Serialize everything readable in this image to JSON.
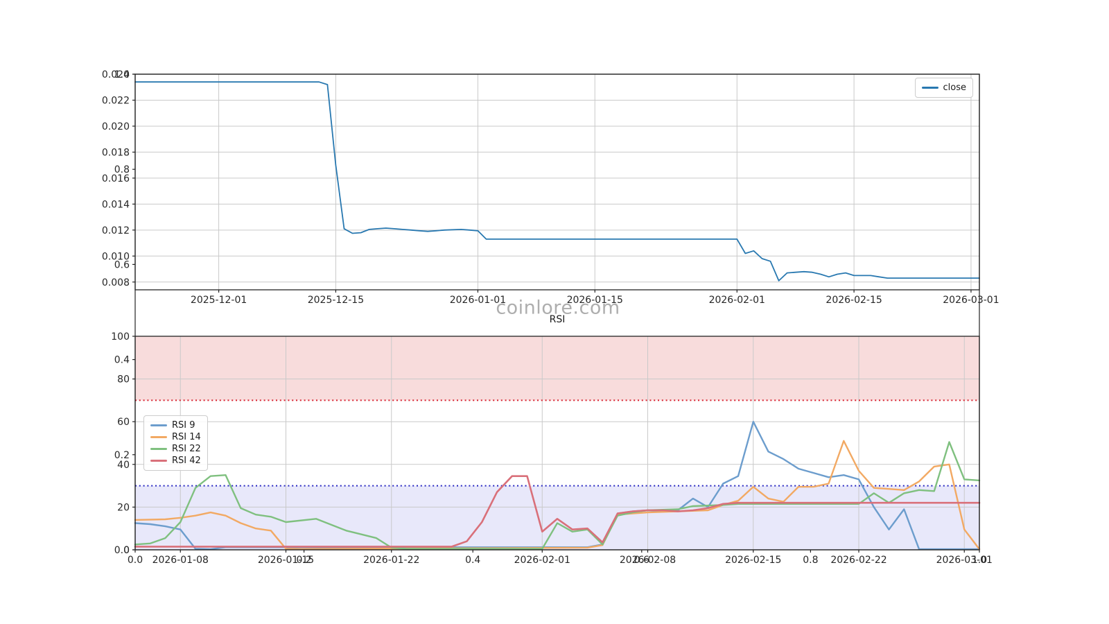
{
  "watermark": "coinlore.com",
  "figure_axis": {
    "x_ticks": [
      "0.0",
      "0.2",
      "0.4",
      "0.6",
      "0.8",
      "1.0"
    ],
    "y_ticks": [
      "0.0",
      "0.2",
      "0.4",
      "0.6",
      "0.8",
      "1.0"
    ]
  },
  "chart_data": [
    {
      "type": "line",
      "title": "",
      "xlabel": "",
      "ylabel": "",
      "x_domain": [
        "2025-11-21",
        "2026-03-02"
      ],
      "y_domain": [
        0.0074,
        0.024
      ],
      "grid": true,
      "x_ticks": [
        "2025-12-01",
        "2025-12-15",
        "2026-01-01",
        "2026-01-15",
        "2026-02-01",
        "2026-02-15",
        "2026-03-01"
      ],
      "y_ticks": [
        0.008,
        0.01,
        0.012,
        0.014,
        0.016,
        0.018,
        0.02,
        0.022,
        0.024
      ],
      "legend": {
        "position": "top-right",
        "entries": [
          {
            "label": "close",
            "color": "#2878b0"
          }
        ]
      },
      "series": [
        {
          "name": "close",
          "color": "#2878b0",
          "width": 1.8,
          "points": [
            [
              "2025-11-21",
              0.0234
            ],
            [
              "2025-12-13",
              0.0234
            ],
            [
              "2025-12-14",
              0.0232
            ],
            [
              "2025-12-15",
              0.017
            ],
            [
              "2025-12-16",
              0.0121
            ],
            [
              "2025-12-17",
              0.01175
            ],
            [
              "2025-12-18",
              0.0118
            ],
            [
              "2025-12-19",
              0.01205
            ],
            [
              "2025-12-20",
              0.0121
            ],
            [
              "2025-12-21",
              0.01215
            ],
            [
              "2025-12-22",
              0.0121
            ],
            [
              "2025-12-23",
              0.01205
            ],
            [
              "2025-12-24",
              0.012
            ],
            [
              "2025-12-25",
              0.01195
            ],
            [
              "2025-12-26",
              0.0119
            ],
            [
              "2025-12-27",
              0.01195
            ],
            [
              "2025-12-28",
              0.012
            ],
            [
              "2025-12-30",
              0.01205
            ],
            [
              "2025-12-31",
              0.012
            ],
            [
              "2026-01-01",
              0.01195
            ],
            [
              "2026-01-02",
              0.0113
            ],
            [
              "2026-01-15",
              0.0113
            ],
            [
              "2026-02-01",
              0.0113
            ],
            [
              "2026-02-02",
              0.0102
            ],
            [
              "2026-02-03",
              0.0104
            ],
            [
              "2026-02-04",
              0.0098
            ],
            [
              "2026-02-05",
              0.0096
            ],
            [
              "2026-02-06",
              0.0081
            ],
            [
              "2026-02-07",
              0.0087
            ],
            [
              "2026-02-08",
              0.00875
            ],
            [
              "2026-02-09",
              0.0088
            ],
            [
              "2026-02-10",
              0.00875
            ],
            [
              "2026-02-11",
              0.0086
            ],
            [
              "2026-02-12",
              0.0084
            ],
            [
              "2026-02-13",
              0.0086
            ],
            [
              "2026-02-14",
              0.0087
            ],
            [
              "2026-02-15",
              0.0085
            ],
            [
              "2026-02-16",
              0.0085
            ],
            [
              "2026-02-17",
              0.0085
            ],
            [
              "2026-02-18",
              0.0084
            ],
            [
              "2026-02-19",
              0.0083
            ],
            [
              "2026-03-02",
              0.0083
            ]
          ]
        }
      ]
    },
    {
      "type": "line",
      "title": "RSI",
      "xlabel": "",
      "ylabel": "",
      "x_domain": [
        "2026-01-05",
        "2026-03-02"
      ],
      "y_domain": [
        0,
        100
      ],
      "grid": true,
      "x_ticks": [
        "2026-01-08",
        "2026-01-15",
        "2026-01-22",
        "2026-02-01",
        "2026-02-08",
        "2026-02-15",
        "2026-02-22",
        "2026-03-01"
      ],
      "y_ticks": [
        0,
        20,
        40,
        60,
        80,
        100
      ],
      "overbought": {
        "value": 70,
        "line_color": "#d8202e",
        "band_color": "rgba(214,39,40,0.16)"
      },
      "oversold": {
        "value": 30,
        "line_color": "#2424c0",
        "band_color": "rgba(76,76,214,0.13)"
      },
      "legend": {
        "position": "left",
        "entries": [
          {
            "label": "RSI 9",
            "color": "#6c9dcd"
          },
          {
            "label": "RSI 14",
            "color": "#f2a963"
          },
          {
            "label": "RSI 22",
            "color": "#7fc07f"
          },
          {
            "label": "RSI 42",
            "color": "#d9707a"
          }
        ]
      },
      "series": [
        {
          "name": "RSI 9",
          "color": "#6c9dcd",
          "width": 2.4,
          "points": [
            [
              "2026-01-05",
              12.5
            ],
            [
              "2026-01-06",
              12
            ],
            [
              "2026-01-07",
              11
            ],
            [
              "2026-01-08",
              9.5
            ],
            [
              "2026-01-09",
              0.5
            ],
            [
              "2026-01-10",
              0.3
            ],
            [
              "2026-01-11",
              1.2
            ],
            [
              "2026-02-04",
              1.2
            ],
            [
              "2026-02-05",
              2.5
            ],
            [
              "2026-02-06",
              17
            ],
            [
              "2026-02-07",
              18
            ],
            [
              "2026-02-08",
              18.5
            ],
            [
              "2026-02-09",
              18
            ],
            [
              "2026-02-10",
              18.5
            ],
            [
              "2026-02-11",
              24
            ],
            [
              "2026-02-12",
              20
            ],
            [
              "2026-02-13",
              31
            ],
            [
              "2026-02-14",
              34.5
            ],
            [
              "2026-02-15",
              60
            ],
            [
              "2026-02-16",
              46
            ],
            [
              "2026-02-17",
              42.5
            ],
            [
              "2026-02-18",
              38
            ],
            [
              "2026-02-19",
              36
            ],
            [
              "2026-02-20",
              34
            ],
            [
              "2026-02-21",
              35
            ],
            [
              "2026-02-22",
              33
            ],
            [
              "2026-02-23",
              20
            ],
            [
              "2026-02-24",
              9.5
            ],
            [
              "2026-02-25",
              19
            ],
            [
              "2026-02-26",
              0.3
            ],
            [
              "2026-03-02",
              0.3
            ]
          ]
        },
        {
          "name": "RSI 14",
          "color": "#f2a963",
          "width": 2.4,
          "points": [
            [
              "2026-01-05",
              14
            ],
            [
              "2026-01-07",
              14.3
            ],
            [
              "2026-01-08",
              15
            ],
            [
              "2026-01-09",
              16
            ],
            [
              "2026-01-10",
              17.5
            ],
            [
              "2026-01-11",
              16
            ],
            [
              "2026-01-12",
              12.5
            ],
            [
              "2026-01-13",
              10
            ],
            [
              "2026-01-14",
              9
            ],
            [
              "2026-01-15",
              0.5
            ],
            [
              "2026-01-16",
              0.4
            ],
            [
              "2026-02-04",
              1.0
            ],
            [
              "2026-02-05",
              2.2
            ],
            [
              "2026-02-06",
              16.5
            ],
            [
              "2026-02-08",
              17.5
            ],
            [
              "2026-02-12",
              18.5
            ],
            [
              "2026-02-13",
              21
            ],
            [
              "2026-02-14",
              23
            ],
            [
              "2026-02-15",
              29.5
            ],
            [
              "2026-02-16",
              24
            ],
            [
              "2026-02-17",
              22.5
            ],
            [
              "2026-02-18",
              29.5
            ],
            [
              "2026-02-19",
              29.5
            ],
            [
              "2026-02-20",
              31
            ],
            [
              "2026-02-21",
              51
            ],
            [
              "2026-02-22",
              37
            ],
            [
              "2026-02-23",
              29
            ],
            [
              "2026-02-24",
              28.5
            ],
            [
              "2026-02-25",
              28
            ],
            [
              "2026-02-26",
              32
            ],
            [
              "2026-02-27",
              39
            ],
            [
              "2026-02-28",
              40
            ],
            [
              "2026-03-01",
              9.5
            ],
            [
              "2026-03-02",
              0.3
            ]
          ]
        },
        {
          "name": "RSI 22",
          "color": "#7fc07f",
          "width": 2.4,
          "points": [
            [
              "2026-01-05",
              2.5
            ],
            [
              "2026-01-06",
              3
            ],
            [
              "2026-01-07",
              5.5
            ],
            [
              "2026-01-08",
              13
            ],
            [
              "2026-01-09",
              29
            ],
            [
              "2026-01-10",
              34.5
            ],
            [
              "2026-01-11",
              35
            ],
            [
              "2026-01-12",
              19.5
            ],
            [
              "2026-01-13",
              16.5
            ],
            [
              "2026-01-14",
              15.5
            ],
            [
              "2026-01-15",
              13
            ],
            [
              "2026-01-17",
              14.5
            ],
            [
              "2026-01-19",
              9
            ],
            [
              "2026-01-21",
              5.5
            ],
            [
              "2026-01-22",
              1
            ],
            [
              "2026-01-23",
              0.5
            ],
            [
              "2026-02-01",
              0.5
            ],
            [
              "2026-02-02",
              12.5
            ],
            [
              "2026-02-03",
              8.5
            ],
            [
              "2026-02-04",
              9.5
            ],
            [
              "2026-02-05",
              2.5
            ],
            [
              "2026-02-06",
              16
            ],
            [
              "2026-02-07",
              17.5
            ],
            [
              "2026-02-08",
              18.5
            ],
            [
              "2026-02-10",
              19
            ],
            [
              "2026-02-11",
              20.5
            ],
            [
              "2026-02-13",
              21
            ],
            [
              "2026-02-14",
              21.5
            ],
            [
              "2026-02-21",
              21.5
            ],
            [
              "2026-02-22",
              21.5
            ],
            [
              "2026-02-23",
              26.5
            ],
            [
              "2026-02-24",
              22
            ],
            [
              "2026-02-25",
              26.5
            ],
            [
              "2026-02-26",
              28
            ],
            [
              "2026-02-27",
              27.5
            ],
            [
              "2026-02-28",
              50.5
            ],
            [
              "2026-03-01",
              33
            ],
            [
              "2026-03-02",
              32.5
            ]
          ]
        },
        {
          "name": "RSI 42",
          "color": "#d9707a",
          "width": 2.6,
          "points": [
            [
              "2026-01-05",
              1.5
            ],
            [
              "2026-01-26",
              1.5
            ],
            [
              "2026-01-27",
              4
            ],
            [
              "2026-01-28",
              13
            ],
            [
              "2026-01-29",
              27
            ],
            [
              "2026-01-30",
              34.5
            ],
            [
              "2026-01-31",
              34.5
            ],
            [
              "2026-02-01",
              8.5
            ],
            [
              "2026-02-02",
              14.5
            ],
            [
              "2026-02-03",
              9.5
            ],
            [
              "2026-02-04",
              10
            ],
            [
              "2026-02-05",
              3.5
            ],
            [
              "2026-02-06",
              17
            ],
            [
              "2026-02-07",
              18
            ],
            [
              "2026-02-08",
              18.5
            ],
            [
              "2026-02-09",
              18.5
            ],
            [
              "2026-02-10",
              18
            ],
            [
              "2026-02-11",
              18.5
            ],
            [
              "2026-02-12",
              19.5
            ],
            [
              "2026-02-13",
              21.5
            ],
            [
              "2026-02-14",
              22
            ],
            [
              "2026-03-02",
              22
            ]
          ]
        }
      ]
    }
  ]
}
